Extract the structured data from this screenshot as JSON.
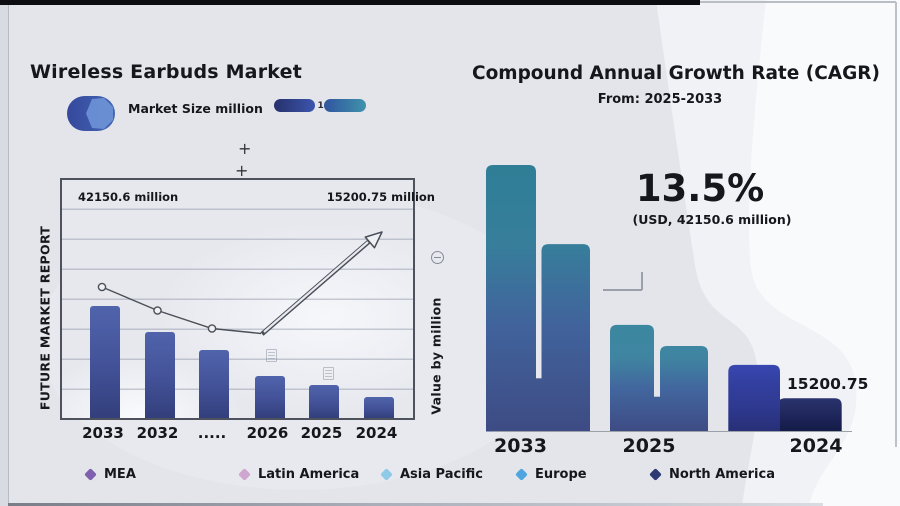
{
  "frame": {
    "top_bar_color": "#0c0d10",
    "background_color": "#e3e5eb",
    "accent_panel_color": "#f5f7fa"
  },
  "header": {
    "title": "Wireless Earbuds Market",
    "series_legend_label": "Market Size million",
    "ratio_mark": "1",
    "plus_marks": [
      "+",
      "+"
    ]
  },
  "left_chart": {
    "annotation_left": "42150.6 million",
    "annotation_right": "15200.75 million",
    "side_watermark": "FUTURE MARKET REPORT",
    "y_axis_label": "Value by million",
    "x_labels": [
      "2033",
      "2032",
      ".....",
      "2026",
      "2025",
      "2024"
    ],
    "bar_color_top": "#5064AB",
    "bar_color_mid": "#44539A",
    "bar_color_bottom": "#333F7C"
  },
  "right_chart": {
    "title": "Compound Annual Growth Rate (CAGR)",
    "subtitle": "From: 2025-2033",
    "cagr_value": "13.5%",
    "cagr_note": "(USD, 42150.6 million)",
    "callout_value": "15200.75",
    "x_labels": [
      "2033",
      "2025",
      "2024"
    ]
  },
  "legend": {
    "items": [
      {
        "label": "MEA",
        "color": "#7E60AE"
      },
      {
        "label": "Latin America",
        "color": "#CFA6CF"
      },
      {
        "label": "Asia Pacific",
        "color": "#8FCBE9"
      },
      {
        "label": "Europe",
        "color": "#4EA5DF"
      },
      {
        "label": "North America",
        "color": "#2B3A73"
      }
    ]
  },
  "chart_data": [
    {
      "type": "bar",
      "title": "Wireless Earbuds Market - Market Size million",
      "categories": [
        "2033",
        "2032",
        ".....",
        "2026",
        "2025",
        "2024"
      ],
      "values_relative": [
        1.0,
        0.77,
        0.61,
        0.375,
        0.295,
        0.19
      ],
      "labeled_values_million": {
        "2033": 42150.6,
        "2024": 15200.75
      },
      "ylabel": "Value by million",
      "trend_line": "declining marker line from 2033 to 2026, then rising arrow",
      "grid": "horizontal"
    },
    {
      "type": "bar",
      "title": "Compound Annual Growth Rate (CAGR)",
      "categories": [
        "2033",
        "2025",
        "2024"
      ],
      "series": [
        {
          "name": "primary",
          "values_relative": [
            1.0,
            0.4,
            0.25
          ]
        },
        {
          "name": "secondary",
          "values_relative": [
            0.703,
            0.321,
            0.125
          ]
        }
      ],
      "annotations": {
        "cagr_percent": 13.5,
        "basis_usd_million": 42150.6,
        "value_2024_million": 15200.75
      },
      "bar_gradients": {
        "2033": {
          "a": [
            "#2E7E96",
            "#377E9B",
            "#41639C",
            "#3E4B84"
          ],
          "b": null
        },
        "2025": {
          "a": [
            "#3B87A0",
            "#3F85A1",
            "#42669E",
            "#3E4B84"
          ],
          "b": null
        },
        "2024": {
          "a": [
            "#3847B2",
            "#333F9E",
            "#2F3A92",
            "#272F76"
          ],
          "b": [
            "#2A336E",
            "#252C62",
            "#1D2458",
            "#131B47"
          ]
        }
      }
    }
  ]
}
